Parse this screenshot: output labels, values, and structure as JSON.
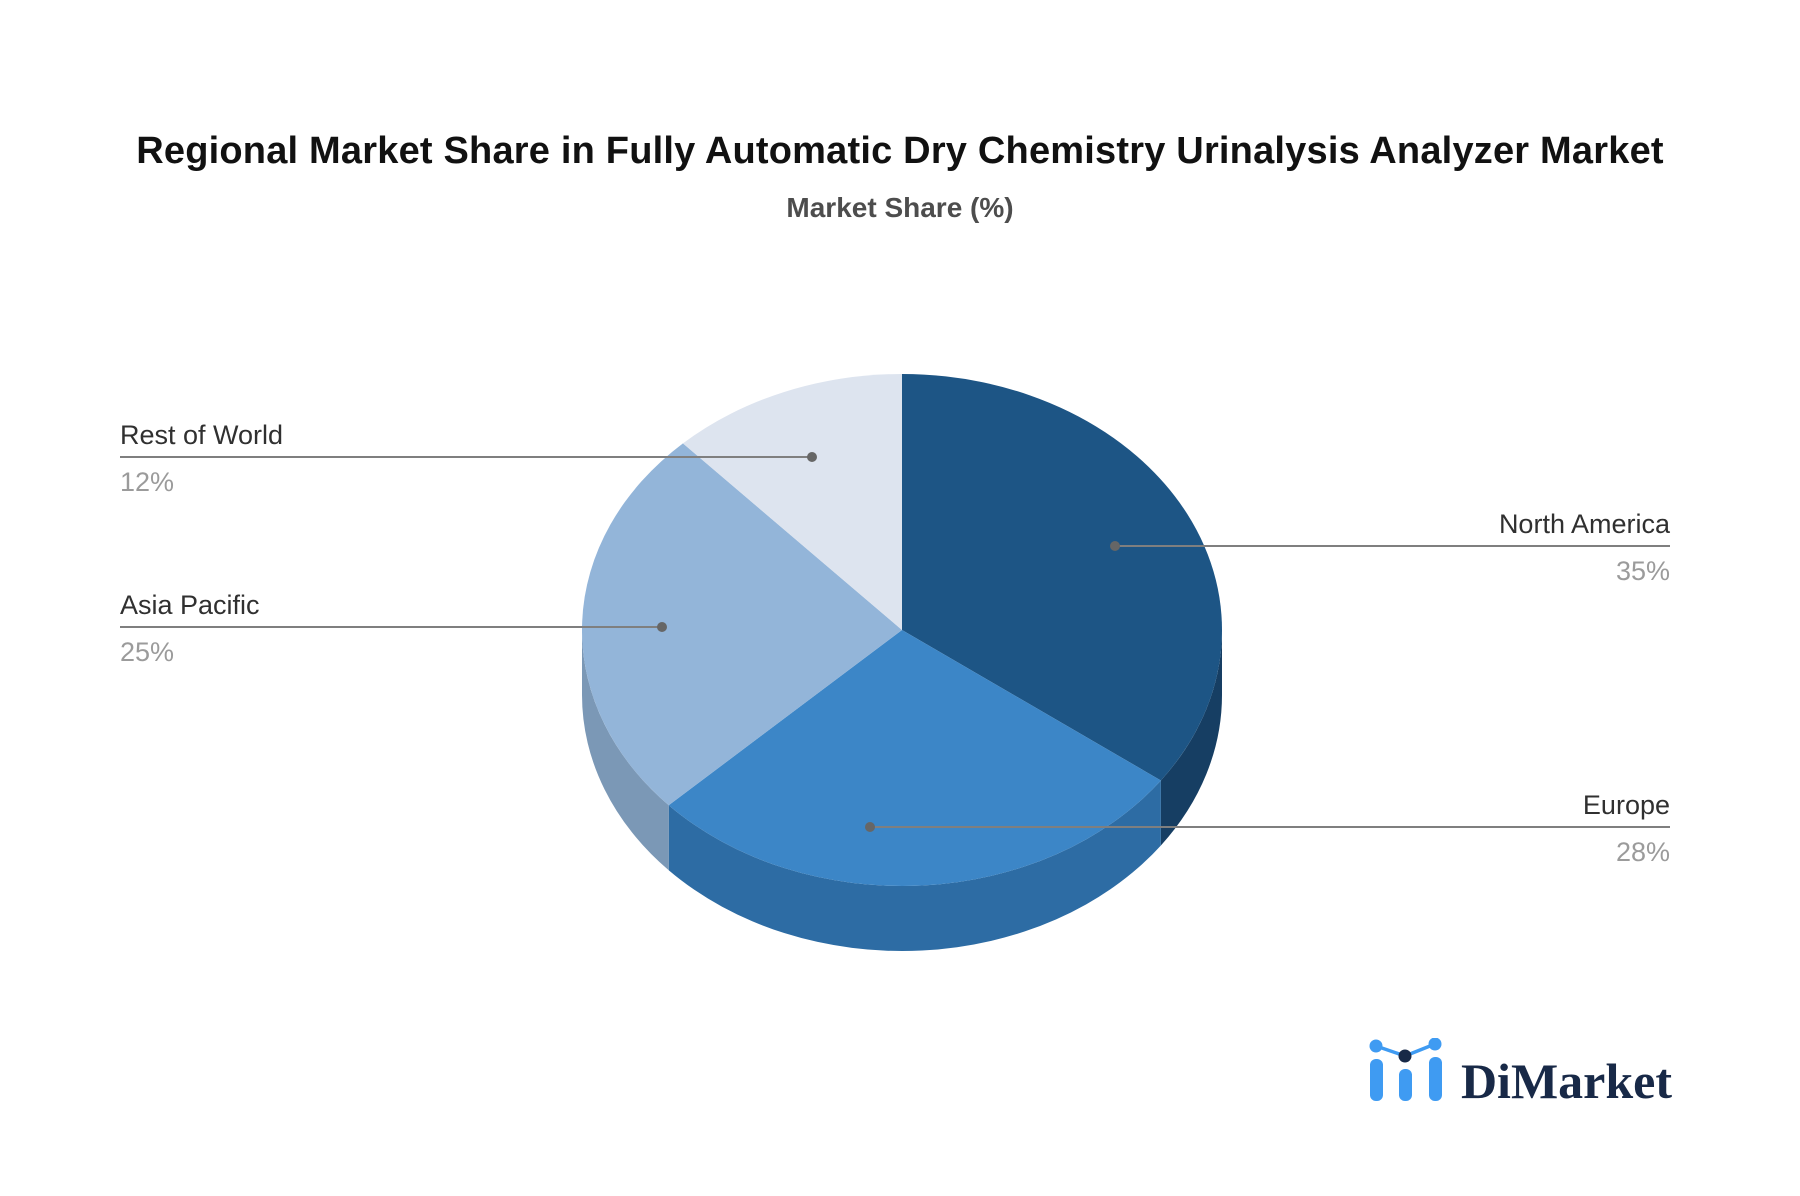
{
  "title": "Regional Market Share in Fully Automatic Dry Chemistry Urinalysis Analyzer Market",
  "subtitle": "Market Share (%)",
  "logo": {
    "text": "DiMarket",
    "icon": "bar-chart-logo-icon",
    "brand_blue": "#3f9bf2",
    "brand_navy": "#182947"
  },
  "chart_data": {
    "type": "pie",
    "title": "Regional Market Share in Fully Automatic Dry Chemistry Urinalysis Analyzer Market",
    "subtitle": "Market Share (%)",
    "unit": "percent",
    "direction": "clockwise",
    "start_angle_deg": 0,
    "style_3d": true,
    "legend_position": "none",
    "connector_color": "#7f7f7f",
    "connector_dot_color": "#666666",
    "label_color": "#303030",
    "value_color": "#9b9b9b",
    "slices": [
      {
        "label": "North America",
        "value": 35,
        "display": "35%",
        "color": "#1d5585",
        "side_color": "#163e63"
      },
      {
        "label": "Europe",
        "value": 28,
        "display": "28%",
        "color": "#3c86c7",
        "side_color": "#2d6ca4"
      },
      {
        "label": "Asia Pacific",
        "value": 25,
        "display": "25%",
        "color": "#93b5d9",
        "side_color": "#7b98b6"
      },
      {
        "label": "Rest of World",
        "value": 12,
        "display": "12%",
        "color": "#dde4ef",
        "side_color": "#c3cfdf"
      }
    ]
  }
}
